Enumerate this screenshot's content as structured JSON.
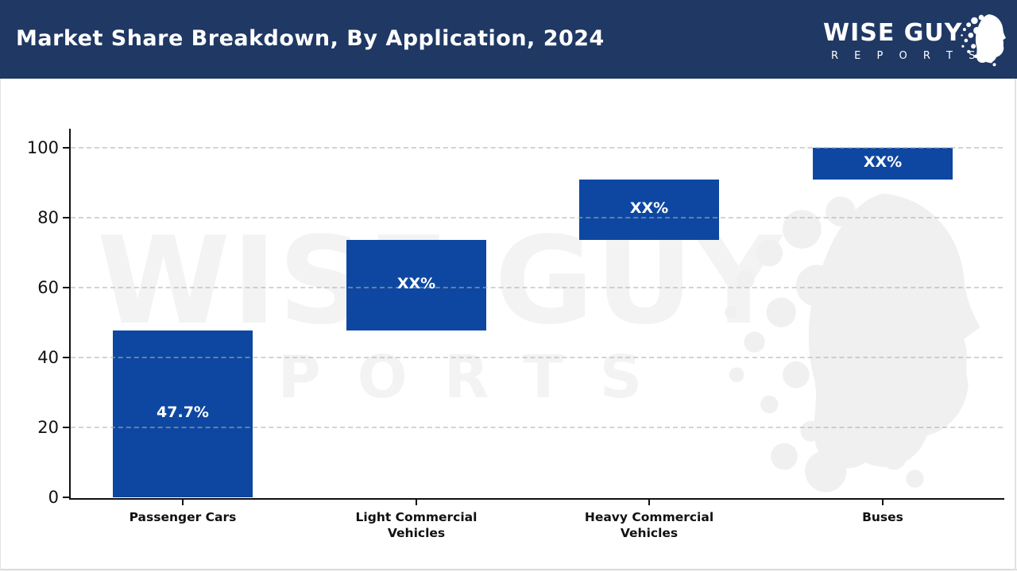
{
  "header": {
    "title": "Market Share Breakdown, By Application, 2024",
    "logo": {
      "wordmark": "WISE GUY",
      "subtext": "R E P O R T S"
    }
  },
  "watermark": {
    "line1": "WISE GUY",
    "line2": "REPORTS"
  },
  "chart_data": {
    "type": "bar",
    "subtype": "waterfall",
    "title": "Market Share Breakdown, By Application, 2024",
    "xlabel": "",
    "ylabel": "",
    "categories": [
      "Passenger Cars",
      "Light Commercial Vehicles",
      "Heavy Commercial Vehicles",
      "Buses"
    ],
    "segments": [
      {
        "category": "Passenger Cars",
        "start": 0,
        "end": 47.7,
        "label": "47.7%"
      },
      {
        "category": "Light Commercial Vehicles",
        "start": 47.7,
        "end": 73.5,
        "label": "XX%"
      },
      {
        "category": "Heavy Commercial Vehicles",
        "start": 73.5,
        "end": 90.8,
        "label": "XX%"
      },
      {
        "category": "Buses",
        "start": 90.8,
        "end": 100,
        "label": "XX%"
      }
    ],
    "yticks": [
      0,
      20,
      40,
      60,
      80,
      100
    ],
    "ylim": [
      0,
      105
    ],
    "grid": "horizontal-dashed",
    "legend": "none"
  },
  "colors": {
    "header_bg": "#1f3864",
    "bar": "#0d47a1",
    "bar_label": "#ffffff",
    "axis": "#111111",
    "grid": "#b0b0b0",
    "watermark": "#f3f3f3"
  }
}
